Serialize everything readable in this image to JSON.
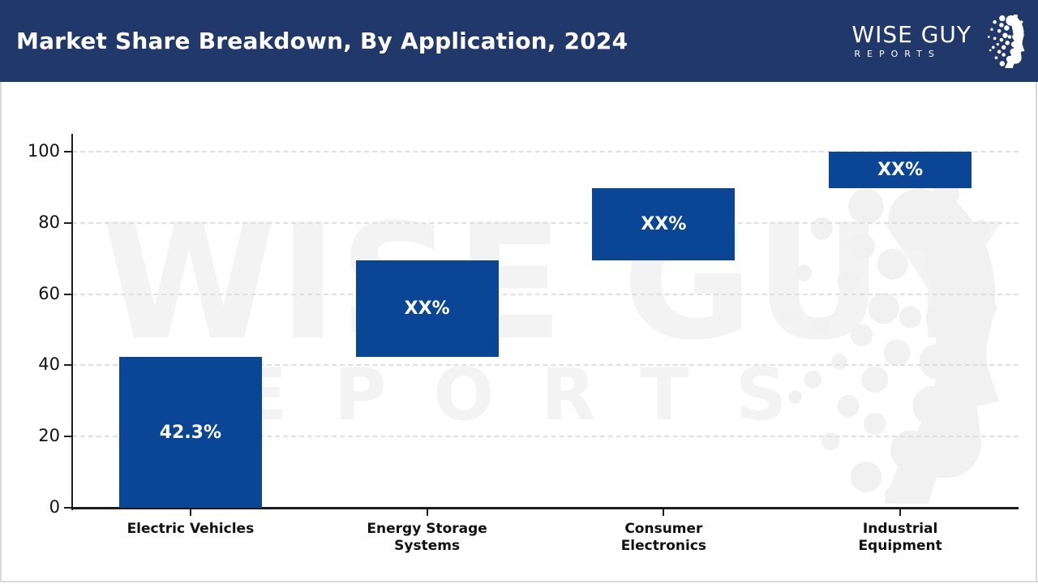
{
  "header": {
    "title": "Market Share Breakdown, By Application, 2024",
    "logo": {
      "name": "WISE GUY",
      "sub": "REPORTS"
    }
  },
  "watermark": {
    "line1": "WISE GUY",
    "line2": "REPORTS"
  },
  "colors": {
    "header_bg": "#21396A",
    "bar": "#0B4696",
    "grid": "#e0e0e0",
    "axis": "#1c1c1c",
    "watermark": "#f3f3f3",
    "bar_label": "#ffffff"
  },
  "chart_data": {
    "type": "bar",
    "subtype": "waterfall",
    "title": "Market Share Breakdown, By Application, 2024",
    "categories": [
      "Electric Vehicles",
      "Energy Storage\nSystems",
      "Consumer\nElectronics",
      "Industrial\nEquipment"
    ],
    "segments": [
      {
        "category": "Electric Vehicles",
        "start": 0,
        "end": 42.3,
        "label": "42.3%"
      },
      {
        "category": "Energy Storage Systems",
        "start": 42.3,
        "end": 69.4,
        "label": "XX%"
      },
      {
        "category": "Consumer Electronics",
        "start": 69.4,
        "end": 89.8,
        "label": "XX%"
      },
      {
        "category": "Industrial Equipment",
        "start": 89.8,
        "end": 100,
        "label": "XX%"
      }
    ],
    "yticks": [
      0,
      20,
      40,
      60,
      80,
      100
    ],
    "ylim": [
      0,
      105
    ],
    "xlabel": "",
    "ylabel": "",
    "grid": "horizontal-dashed",
    "legend": null,
    "bar_color": "#0B4696",
    "label_color": "#ffffff"
  }
}
